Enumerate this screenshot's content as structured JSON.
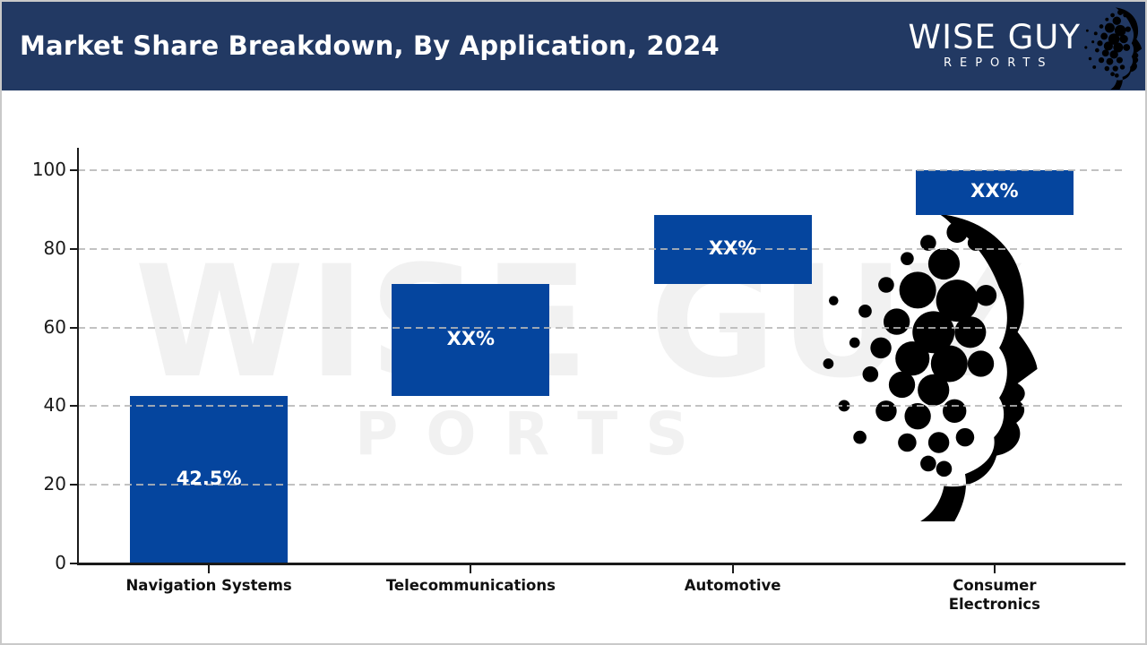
{
  "header": {
    "title": "Market Share Breakdown, By Application, 2024",
    "bg_color": "#223963",
    "logo": {
      "line1": "WISE GUY",
      "line2": "REPORTS"
    }
  },
  "watermark": {
    "line1": "WISE GUY",
    "line2": "P O R T S"
  },
  "chart_data": {
    "type": "bar",
    "variant": "waterfall",
    "title": "Market Share Breakdown, By Application, 2024",
    "xlabel": "",
    "ylabel": "",
    "categories": [
      "Navigation Systems",
      "Telecommunications",
      "Automotive",
      "Consumer Electronics"
    ],
    "tick_label_lines": [
      [
        "Navigation Systems"
      ],
      [
        "Telecommunications"
      ],
      [
        "Automotive"
      ],
      [
        "Consumer",
        "Electronics"
      ]
    ],
    "segments": [
      {
        "category": "Navigation Systems",
        "start": 0,
        "end": 42.5,
        "label": "42.5%"
      },
      {
        "category": "Telecommunications",
        "start": 42.5,
        "end": 71,
        "label": "XX%"
      },
      {
        "category": "Automotive",
        "start": 71,
        "end": 88.5,
        "label": "XX%"
      },
      {
        "category": "Consumer Electronics",
        "start": 88.5,
        "end": 100,
        "label": "XX%"
      }
    ],
    "ylim": [
      0,
      100
    ],
    "yticks": [
      0,
      20,
      40,
      60,
      80,
      100
    ],
    "grid": {
      "axis": "y",
      "style": "dashed",
      "color": "#cccccc"
    },
    "legend": "none",
    "bar_color": "#05459e",
    "bar_label_color": "#ffffff",
    "axis_color": "#1a1a1a"
  }
}
